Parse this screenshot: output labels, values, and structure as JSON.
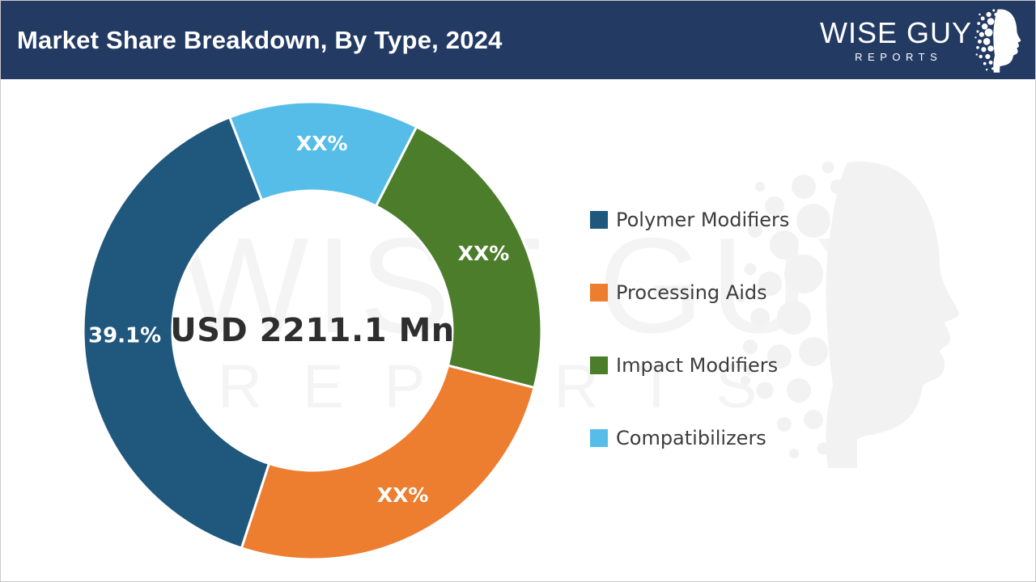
{
  "header": {
    "title": "Market Share Breakdown, By Type, 2024",
    "logo": {
      "wordmark": "WISE GUY",
      "subtitle": "REPORTS"
    }
  },
  "watermark": {
    "line1": "WISE GUY",
    "line2": "REPORTS"
  },
  "chart_data": {
    "type": "donut",
    "title": "Market Share Breakdown, By Type, 2024",
    "center_label": "USD 2211.1 Mn",
    "start_angle_deg": -21.2,
    "segments": [
      {
        "label": "Compatibilizers",
        "value": 13.4,
        "display_label": "XX%",
        "color": "#55bde8"
      },
      {
        "label": "Impact Modifiers",
        "value": 21.5,
        "display_label": "XX%",
        "color": "#4c7d2b"
      },
      {
        "label": "Processing Aids",
        "value": 26.0,
        "display_label": "XX%",
        "color": "#ed7d2f"
      },
      {
        "label": "Polymer Modifiers",
        "value": 39.1,
        "display_label": "39.1%",
        "color": "#1f577d"
      }
    ]
  },
  "legend": {
    "items": [
      {
        "label": "Polymer Modifiers",
        "color": "#1f577d"
      },
      {
        "label": "Processing Aids",
        "color": "#ed7d2f"
      },
      {
        "label": "Impact Modifiers",
        "color": "#4c7d2b"
      },
      {
        "label": "Compatibilizers",
        "color": "#55bde8"
      }
    ]
  },
  "colors": {
    "header_bg": "#233a63",
    "canvas_border": "#c9c9c9",
    "center_text": "#2e2e2e",
    "legend_text": "#3c3c3c",
    "watermark": "#f4f4f4",
    "segment_gap": "#ffffff"
  }
}
